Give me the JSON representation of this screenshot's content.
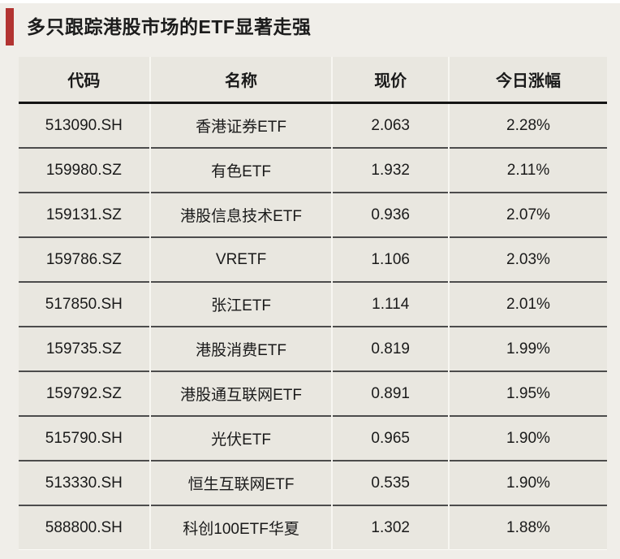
{
  "title": {
    "text": "多只跟踪港股市场的ETF显著走强"
  },
  "colors": {
    "accent_red": "#b23331",
    "page_bg": "#f0eee9",
    "cell_bg": "#e9e7e0",
    "text": "#1a1a1a",
    "header_rule": "#141414",
    "row_rule": "#4c4c4c",
    "divider": "#f7f6f1"
  },
  "table": {
    "columns": [
      "代码",
      "名称",
      "现价",
      "今日涨幅"
    ],
    "rows": [
      {
        "code": "513090.SH",
        "name": "香港证券ETF",
        "price": "2.063",
        "change": "2.28%"
      },
      {
        "code": "159980.SZ",
        "name": "有色ETF",
        "price": "1.932",
        "change": "2.11%"
      },
      {
        "code": "159131.SZ",
        "name": "港股信息技术ETF",
        "price": "0.936",
        "change": "2.07%"
      },
      {
        "code": "159786.SZ",
        "name": "VRETF",
        "price": "1.106",
        "change": "2.03%"
      },
      {
        "code": "517850.SH",
        "name": "张江ETF",
        "price": "1.114",
        "change": "2.01%"
      },
      {
        "code": "159735.SZ",
        "name": "港股消费ETF",
        "price": "0.819",
        "change": "1.99%"
      },
      {
        "code": "159792.SZ",
        "name": "港股通互联网ETF",
        "price": "0.891",
        "change": "1.95%"
      },
      {
        "code": "515790.SH",
        "name": "光伏ETF",
        "price": "0.965",
        "change": "1.90%"
      },
      {
        "code": "513330.SH",
        "name": "恒生互联网ETF",
        "price": "0.535",
        "change": "1.90%"
      },
      {
        "code": "588800.SH",
        "name": "科创100ETF华夏",
        "price": "1.302",
        "change": "1.88%"
      }
    ]
  },
  "chart_data": {
    "type": "table",
    "title": "多只跟踪港股市场的ETF显著走强",
    "columns": [
      "代码",
      "名称",
      "现价",
      "今日涨幅"
    ],
    "rows": [
      [
        "513090.SH",
        "香港证券ETF",
        "2.063",
        "2.28%"
      ],
      [
        "159980.SZ",
        "有色ETF",
        "1.932",
        "2.11%"
      ],
      [
        "159131.SZ",
        "港股信息技术ETF",
        "0.936",
        "2.07%"
      ],
      [
        "159786.SZ",
        "VRETF",
        "1.106",
        "2.03%"
      ],
      [
        "517850.SH",
        "张江ETF",
        "1.114",
        "2.01%"
      ],
      [
        "159735.SZ",
        "港股消费ETF",
        "0.819",
        "1.99%"
      ],
      [
        "159792.SZ",
        "港股通互联网ETF",
        "0.891",
        "1.95%"
      ],
      [
        "515790.SH",
        "光伏ETF",
        "0.965",
        "1.90%"
      ],
      [
        "513330.SH",
        "恒生互联网ETF",
        "0.535",
        "1.90%"
      ],
      [
        "588800.SH",
        "科创100ETF华夏",
        "1.302",
        "1.88%"
      ]
    ]
  }
}
